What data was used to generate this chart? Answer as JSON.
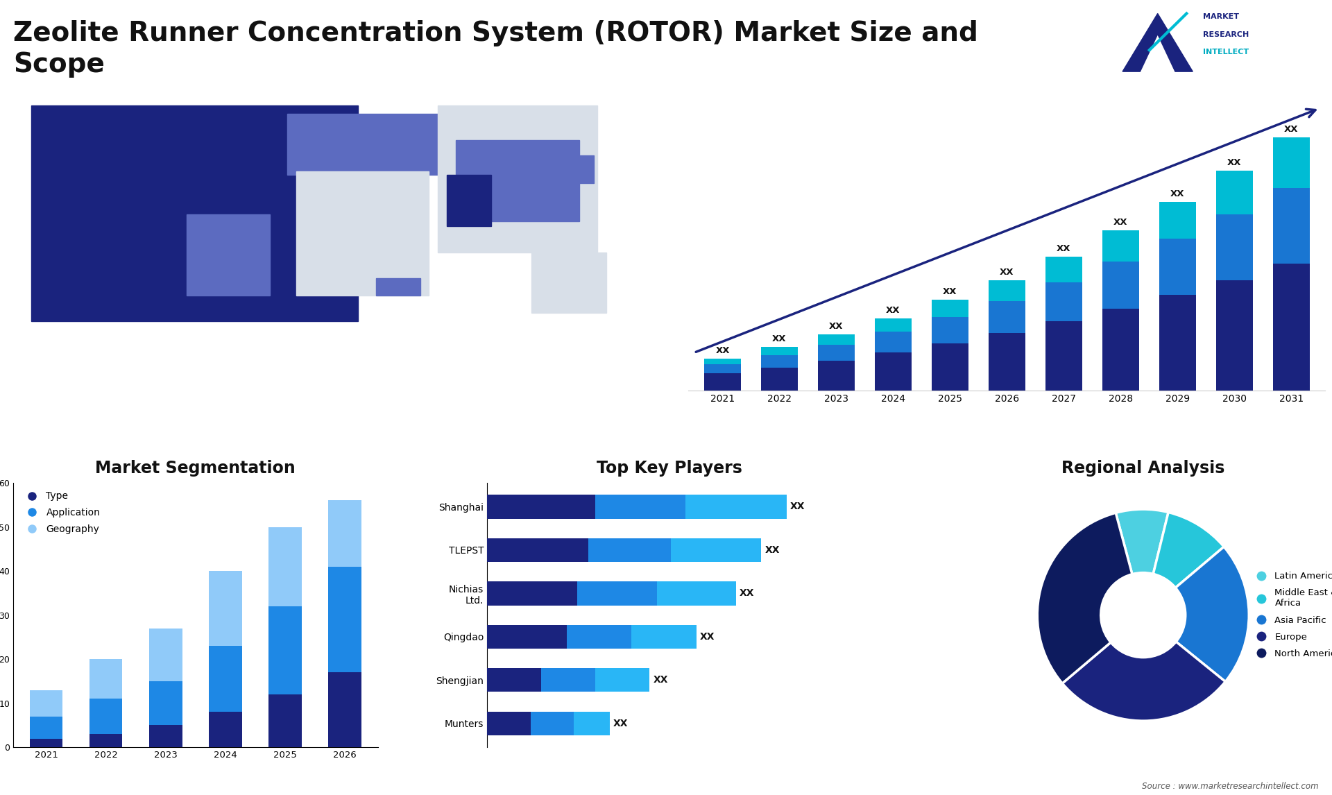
{
  "title_line1": "Zeolite Runner Concentration System (ROTOR) Market Size and",
  "title_line2": "Scope",
  "title_fontsize": 28,
  "bg_color": "#ffffff",
  "bar_years": [
    "2021",
    "2022",
    "2023",
    "2024",
    "2025",
    "2026",
    "2027",
    "2028",
    "2029",
    "2030",
    "2031"
  ],
  "bar_seg1": [
    1.5,
    2.0,
    2.6,
    3.3,
    4.1,
    5.0,
    6.0,
    7.1,
    8.3,
    9.6,
    11.0
  ],
  "bar_seg2": [
    0.8,
    1.1,
    1.4,
    1.8,
    2.3,
    2.8,
    3.4,
    4.1,
    4.9,
    5.7,
    6.6
  ],
  "bar_seg3": [
    0.5,
    0.7,
    0.9,
    1.2,
    1.5,
    1.8,
    2.2,
    2.7,
    3.2,
    3.8,
    4.4
  ],
  "bar_color1": "#1a237e",
  "bar_color2": "#1976d2",
  "bar_color3": "#00bcd4",
  "bar_label": "XX",
  "seg_years": [
    "2021",
    "2022",
    "2023",
    "2024",
    "2025",
    "2026"
  ],
  "seg_s1": [
    2,
    3,
    5,
    8,
    12,
    17
  ],
  "seg_s2": [
    5,
    8,
    10,
    15,
    20,
    24
  ],
  "seg_s3": [
    6,
    9,
    12,
    17,
    18,
    15
  ],
  "seg_color1": "#1a237e",
  "seg_color2": "#1e88e5",
  "seg_color3": "#90caf9",
  "seg_title": "Market Segmentation",
  "seg_ylim_max": 60,
  "seg_legend": [
    "Type",
    "Application",
    "Geography"
  ],
  "players": [
    "Shanghai",
    "TLEPST",
    "Nichias\nLtd.",
    "Qingdao",
    "Shengjian",
    "Munters"
  ],
  "p_s1": [
    30,
    28,
    25,
    22,
    15,
    12
  ],
  "p_s2": [
    25,
    23,
    22,
    18,
    15,
    12
  ],
  "p_s3": [
    28,
    25,
    22,
    18,
    15,
    10
  ],
  "p_color1": "#1a237e",
  "p_color2": "#1e88e5",
  "p_color3": "#29b6f6",
  "players_title": "Top Key Players",
  "players_label": "XX",
  "pie_values": [
    8,
    10,
    22,
    28,
    32
  ],
  "pie_colors": [
    "#4dd0e1",
    "#26c6da",
    "#1976d2",
    "#1a237e",
    "#0d1b5e"
  ],
  "pie_labels": [
    "Latin America",
    "Middle East &\nAfrica",
    "Asia Pacific",
    "Europe",
    "North America"
  ],
  "pie_title": "Regional Analysis",
  "source_text": "Source : www.marketresearchintellect.com",
  "map_ann_color": "#1a237e",
  "map_bg": "#f0f4f8",
  "map_land": "#d8dfe8",
  "map_dark": "#1a237e",
  "map_mid": "#5c6bc0",
  "map_light": "#9fa8da"
}
